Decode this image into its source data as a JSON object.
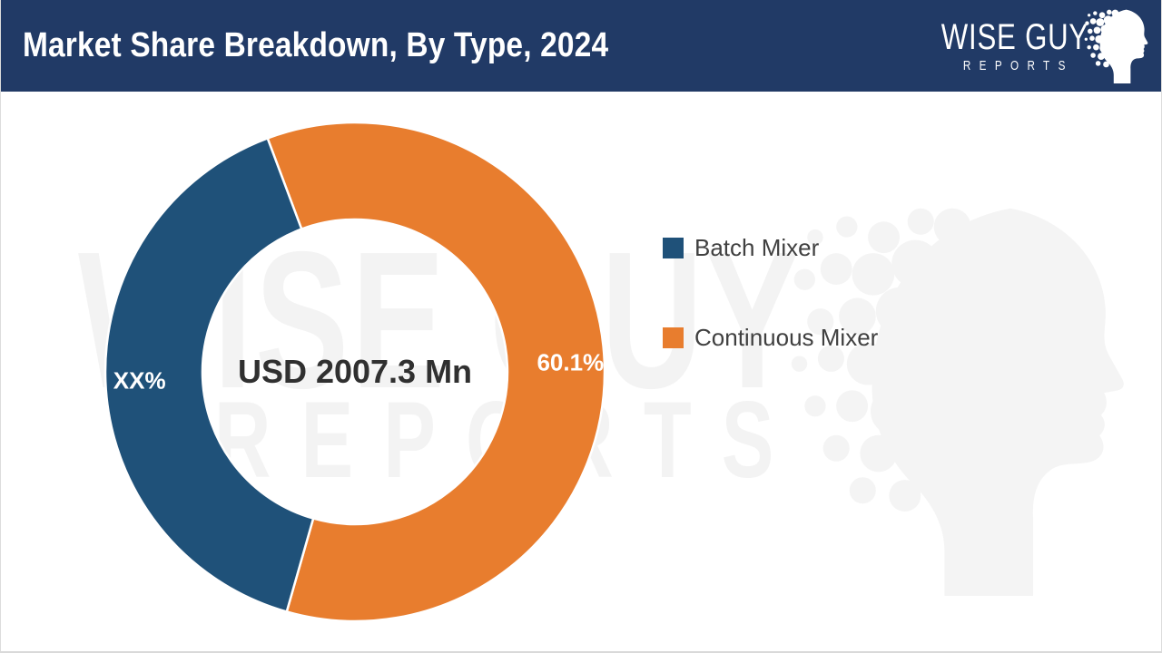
{
  "header": {
    "title": "Market Share Breakdown, By Type, 2024",
    "bg_color": "#213a66",
    "logo": {
      "line1": "WISE GUY",
      "line2": "REPORTS"
    }
  },
  "watermark": {
    "line1": "WISE GUY",
    "line2": "REPORTS"
  },
  "chart_data": {
    "type": "pie",
    "donut": true,
    "title": "Market Share Breakdown, By Type, 2024",
    "categories": [
      "Batch Mixer",
      "Continuous Mixer"
    ],
    "values": [
      39.9,
      60.1
    ],
    "slice_labels": [
      "XX%",
      "60.1%"
    ],
    "colors": [
      "#1f5179",
      "#e87d2e"
    ],
    "center_label": "USD 2007.3 Mn",
    "start_angle_deg": -20.5,
    "start_slice_index": 1,
    "clockwise": true,
    "inner_radius_ratio": 0.611,
    "legend_position": "right",
    "separator_color": "#ffffff"
  },
  "legend": {
    "items": [
      {
        "label": "Batch Mixer",
        "color": "#1f5179"
      },
      {
        "label": "Continuous Mixer",
        "color": "#e87d2e"
      }
    ]
  }
}
